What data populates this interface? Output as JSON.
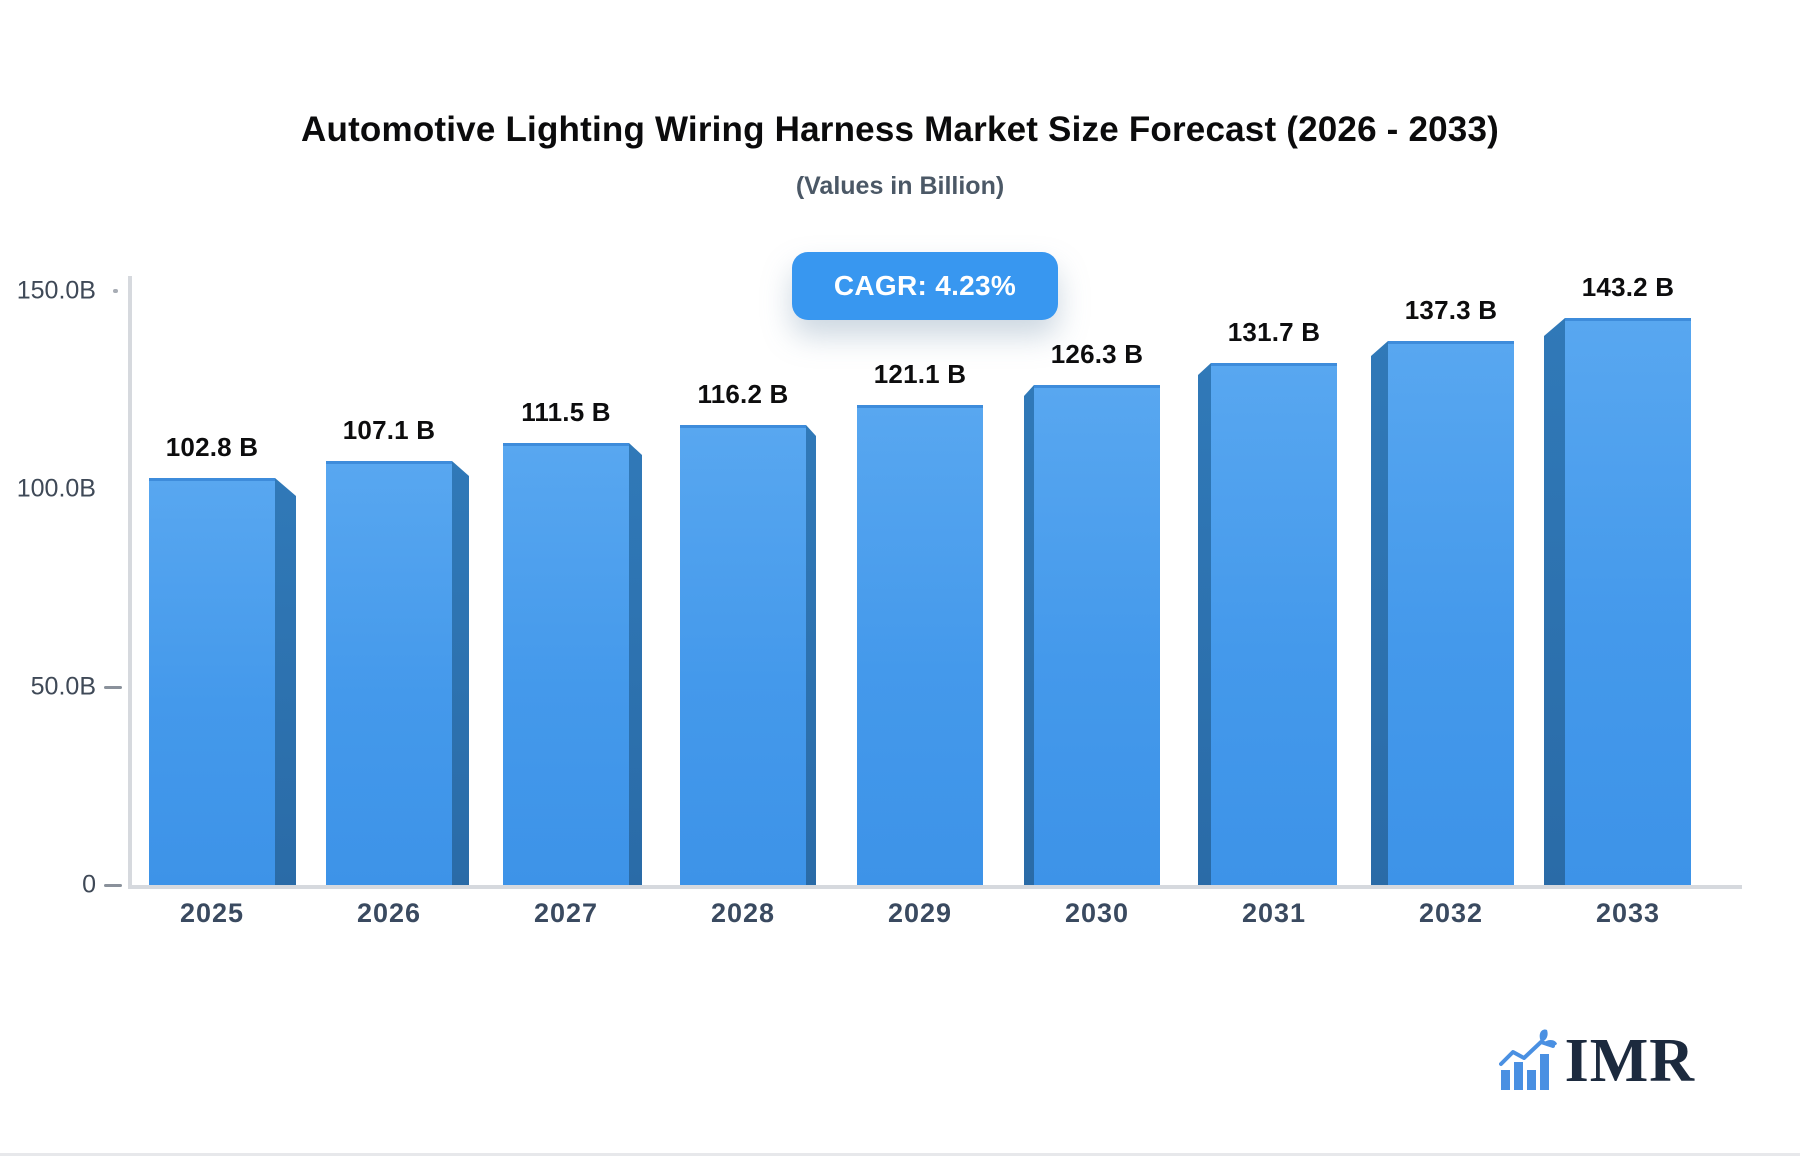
{
  "title": "Automotive Lighting Wiring Harness Market Size Forecast (2026 - 2033)",
  "subtitle": "(Values in Billion)",
  "cagr_badge": "CAGR: 4.23%",
  "chart_data": {
    "type": "bar",
    "title": "Automotive Lighting Wiring Harness Market Size Forecast (2026 - 2033)",
    "subtitle": "(Values in Billion)",
    "annotation": "CAGR: 4.23%",
    "categories": [
      "2025",
      "2026",
      "2027",
      "2028",
      "2029",
      "2030",
      "2031",
      "2032",
      "2033"
    ],
    "values": [
      102.8,
      107.1,
      111.5,
      116.2,
      121.1,
      126.3,
      131.7,
      137.3,
      143.2
    ],
    "value_labels": [
      "102.8 B",
      "107.1 B",
      "111.5 B",
      "116.2 B",
      "121.1 B",
      "126.3 B",
      "131.7 B",
      "137.3 B",
      "143.2 B"
    ],
    "xlabel": "",
    "ylabel": "",
    "ylim": [
      0,
      150
    ],
    "yticks": [
      {
        "value": 150,
        "label": "150.0B",
        "tick": "dot"
      },
      {
        "value": 100,
        "label": "100.0B",
        "tick": "none"
      },
      {
        "value": 50,
        "label": "50.0B",
        "tick": "dash"
      },
      {
        "value": 0,
        "label": "0",
        "tick": "dash"
      }
    ],
    "grid": false,
    "legend": false,
    "bar_style": "3d-extruded-perspective"
  },
  "colors": {
    "bar_face_top": "#58A7F0",
    "bar_face_bottom": "#3D93E8",
    "bar_side": "#2C73B1",
    "bar_top_edge": "#3E8CDB",
    "badge_bg": "#3897F0",
    "badge_text": "#FFFFFF",
    "axis_line": "#D6D9DE",
    "tick_mark": "#8A919B",
    "ytick_text": "#3F4957",
    "xtick_text": "#3A4A60",
    "title_text": "#0B0B0C",
    "subtitle_text": "#4B5866",
    "logo_text": "#1C2A3E",
    "logo_icon": "#4A90E2"
  },
  "logo": {
    "text": "IMR",
    "icon": "bar-chart-leaf-icon"
  }
}
